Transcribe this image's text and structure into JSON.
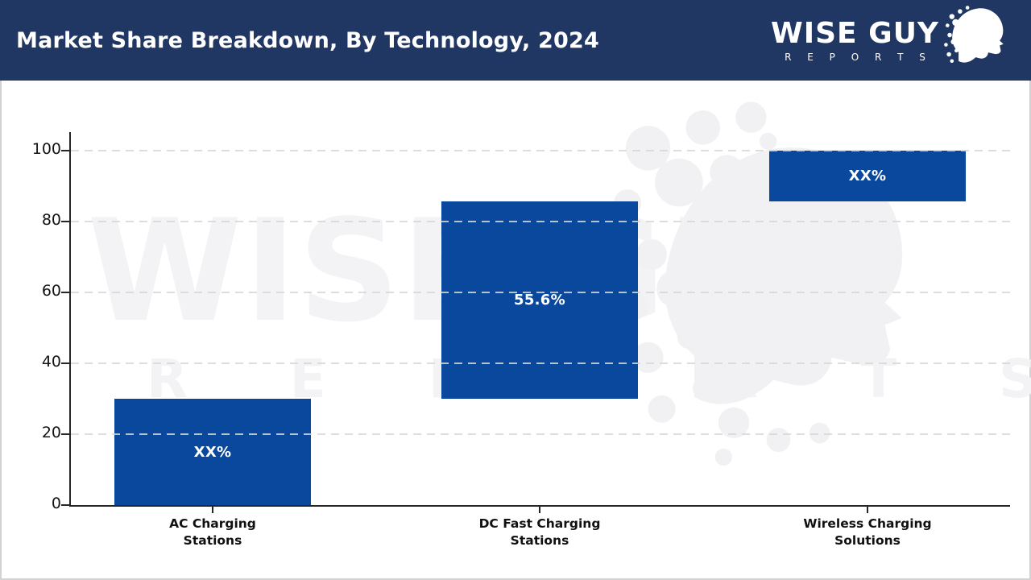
{
  "header": {
    "title": "Market Share Breakdown, By Technology, 2024",
    "brand": {
      "name": "WISE GUY",
      "sub": "R E P O R T S"
    }
  },
  "watermark": {
    "brand": "WISE GUY",
    "sub": "R E P O R T S"
  },
  "chart_data": {
    "type": "bar",
    "subtype": "floating-waterfall-segments",
    "title": "Market Share Breakdown, By Technology, 2024",
    "categories": [
      "AC Charging Stations",
      "DC Fast Charging Stations",
      "Wireless Charging Solutions"
    ],
    "segments": [
      {
        "category": "AC Charging Stations",
        "label_lines": [
          "AC Charging",
          "Stations"
        ],
        "start": 0,
        "end": 30,
        "value_label": "XX%"
      },
      {
        "category": "DC Fast Charging Stations",
        "label_lines": [
          "DC Fast Charging",
          "Stations"
        ],
        "start": 30,
        "end": 85.6,
        "value_label": "55.6%"
      },
      {
        "category": "Wireless Charging Solutions",
        "label_lines": [
          "Wireless Charging",
          "Solutions"
        ],
        "start": 85.6,
        "end": 100,
        "value_label": "XX%"
      }
    ],
    "xlabel": "",
    "ylabel": "",
    "ylim": [
      0,
      100
    ],
    "yticks": [
      0,
      20,
      40,
      60,
      80,
      100
    ],
    "grid": {
      "axis": "y",
      "style": "dashed"
    },
    "legend": "none"
  },
  "colors": {
    "header_bg": "#213763",
    "bar": "#0a489e",
    "grid": "#d7d7d7",
    "axis": "#262626",
    "tick_text": "#141414",
    "bar_label_text": "#ffffff",
    "watermark": "#f3f3f6",
    "canvas_border": "#d2d2d2"
  }
}
